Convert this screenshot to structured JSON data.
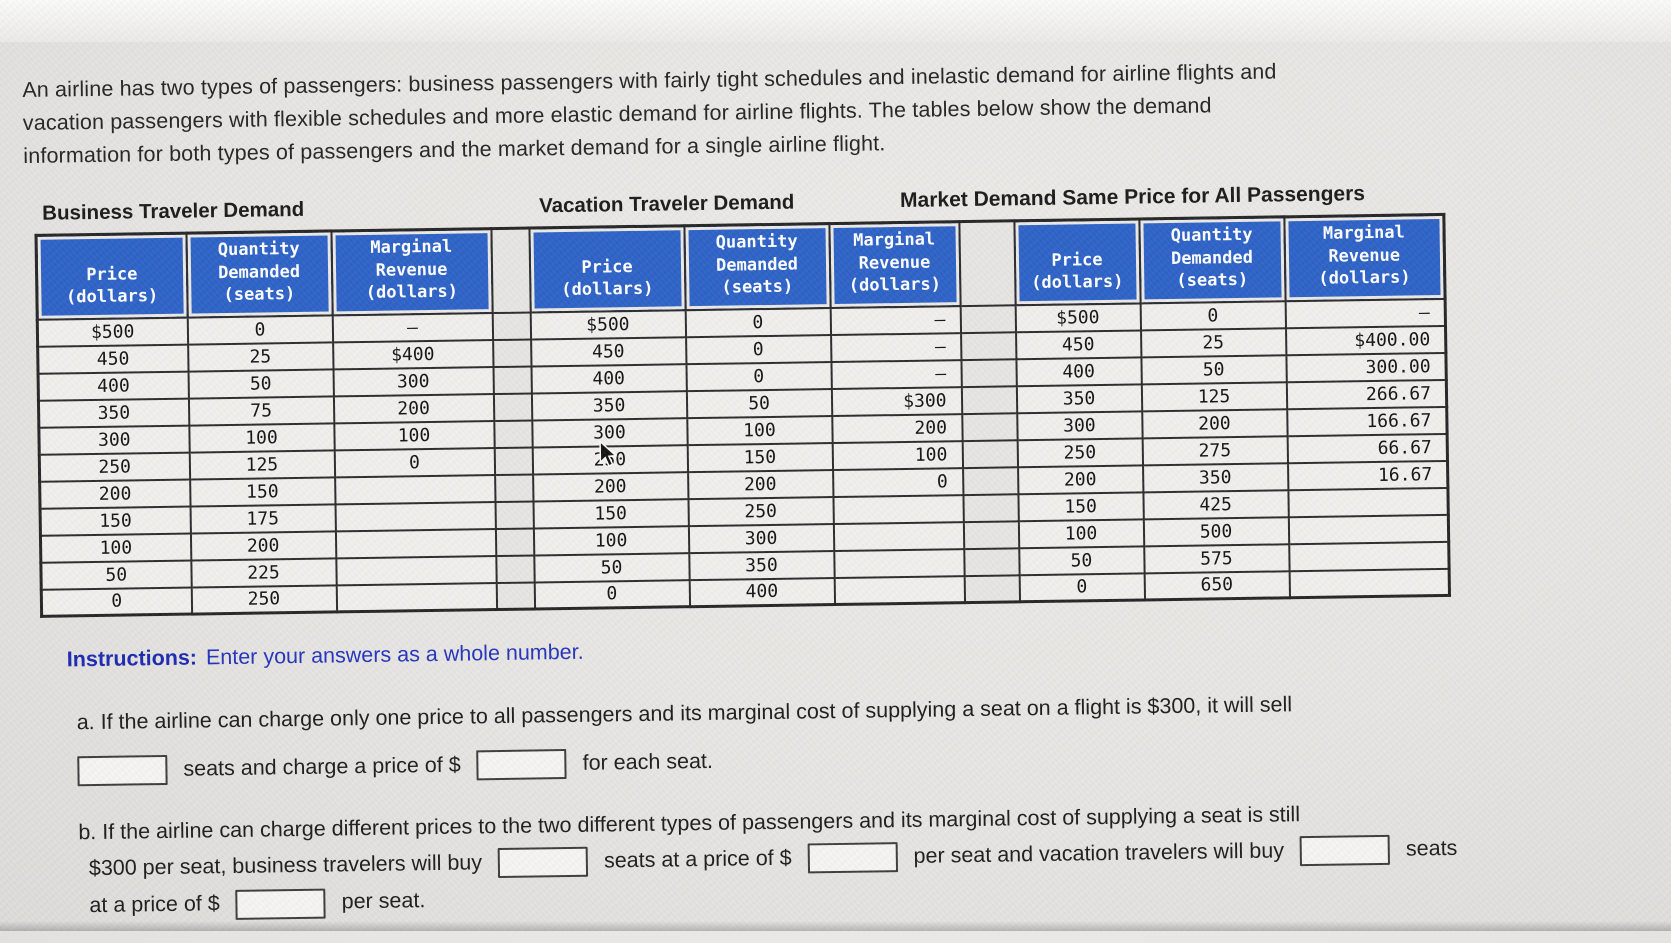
{
  "intro": {
    "lines": [
      "An airline has two types of passengers: business passengers with fairly tight schedules and inelastic demand for airline flights and",
      "vacation passengers with flexible schedules and more elastic demand for airline flights. The tables below show the demand",
      "information for both types of passengers and the market demand for a single airline flight."
    ]
  },
  "tables": [
    {
      "title": "Business Traveler Demand",
      "headers": [
        "Price\n(dollars)",
        "Quantity\nDemanded\n(seats)",
        "Marginal\nRevenue\n(dollars)"
      ],
      "rows": [
        [
          "$500",
          "0",
          "—"
        ],
        [
          "450",
          "25",
          "$400"
        ],
        [
          "400",
          "50",
          "300"
        ],
        [
          "350",
          "75",
          "200"
        ],
        [
          "300",
          "100",
          "100"
        ],
        [
          "250",
          "125",
          "0"
        ],
        [
          "200",
          "150",
          ""
        ],
        [
          "150",
          "175",
          ""
        ],
        [
          "100",
          "200",
          ""
        ],
        [
          "50",
          "225",
          ""
        ],
        [
          "0",
          "250",
          ""
        ]
      ]
    },
    {
      "title": "Vacation Traveler Demand",
      "headers": [
        "Price\n(dollars)",
        "Quantity\nDemanded\n(seats)",
        "Marginal\nRevenue\n(dollars)"
      ],
      "rows": [
        [
          "$500",
          "0",
          "—"
        ],
        [
          "450",
          "0",
          "—"
        ],
        [
          "400",
          "0",
          "—"
        ],
        [
          "350",
          "50",
          "$300"
        ],
        [
          "300",
          "100",
          "200"
        ],
        [
          "250",
          "150",
          "100"
        ],
        [
          "200",
          "200",
          "0"
        ],
        [
          "150",
          "250",
          ""
        ],
        [
          "100",
          "300",
          ""
        ],
        [
          "50",
          "350",
          ""
        ],
        [
          "0",
          "400",
          ""
        ]
      ]
    },
    {
      "title": "Market Demand Same Price for All Passengers",
      "headers": [
        "Price\n(dollars)",
        "Quantity\nDemanded\n(seats)",
        "Marginal\nRevenue\n(dollars)"
      ],
      "rows": [
        [
          "$500",
          "0",
          "—"
        ],
        [
          "450",
          "25",
          "$400.00"
        ],
        [
          "400",
          "50",
          "300.00"
        ],
        [
          "350",
          "125",
          "266.67"
        ],
        [
          "300",
          "200",
          "166.67"
        ],
        [
          "250",
          "275",
          "66.67"
        ],
        [
          "200",
          "350",
          "16.67"
        ],
        [
          "150",
          "425",
          ""
        ],
        [
          "100",
          "500",
          ""
        ],
        [
          "50",
          "575",
          ""
        ],
        [
          "0",
          "650",
          ""
        ]
      ]
    }
  ],
  "instructions": {
    "label": "Instructions:",
    "text": "Enter your answers as a whole number."
  },
  "question_a": {
    "line1": "a. If the airline can charge only one price to all passengers and its marginal cost of supplying a seat on a flight is $300, it will sell",
    "line2_mid": "seats and charge a price of $",
    "line2_end": "for each seat.",
    "answers": {
      "seats": "",
      "price": ""
    }
  },
  "question_b": {
    "line1": "b. If the airline can charge different prices to the two different types of passengers and its marginal cost of supplying a seat is still",
    "line2_start": "$300 per seat, business travelers will buy",
    "line2_mid1": "seats at a price of $",
    "line2_mid2": "per seat and vacation travelers will buy",
    "line2_end": "seats",
    "line3_start": "at a price of $",
    "line3_end": "per seat.",
    "answers": {
      "business_seats": "",
      "business_price": "",
      "vacation_seats": "",
      "vacation_price": ""
    }
  },
  "colors": {
    "table_header_bg": "#2e63c7",
    "instructions_blue": "#2434bd"
  }
}
